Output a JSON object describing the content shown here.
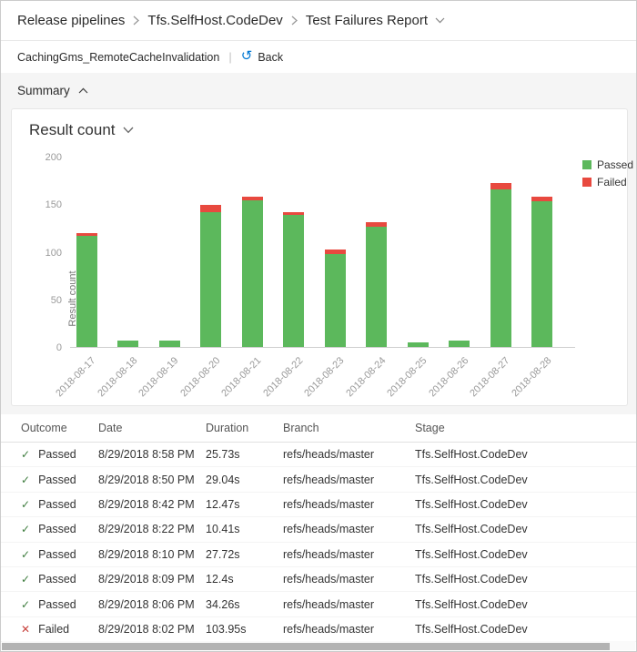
{
  "breadcrumb": {
    "items": [
      "Release pipelines",
      "Tfs.SelfHost.CodeDev",
      "Test Failures Report"
    ]
  },
  "toolbar": {
    "pipeline_name": "CachingGms_RemoteCacheInvalidation",
    "separator": "|",
    "back_label": "Back"
  },
  "summary": {
    "label": "Summary"
  },
  "icons": {
    "back": "undo-arrow",
    "back_glyph": "↺",
    "breadcrumb_separator": "chevron-right",
    "report_dropdown": "chevron-down",
    "summary_collapse": "chevron-up",
    "chart_dropdown": "chevron-down",
    "passed_glyph": "✓",
    "failed_glyph": "✕"
  },
  "chart_data": {
    "type": "bar",
    "stacked": true,
    "title": "Result count",
    "ylabel": "Result count",
    "xlabel": "",
    "ylim": [
      0,
      200
    ],
    "yticks": [
      0,
      50,
      100,
      150,
      200
    ],
    "grid": false,
    "legend_position": "top-right",
    "categories": [
      "2018-08-17",
      "2018-08-18",
      "2018-08-19",
      "2018-08-20",
      "2018-08-21",
      "2018-08-22",
      "2018-08-23",
      "2018-08-24",
      "2018-08-25",
      "2018-08-26",
      "2018-08-27",
      "2018-08-28"
    ],
    "series": [
      {
        "name": "Passed",
        "color": "#5cb85c",
        "values": [
          117,
          7,
          7,
          142,
          154,
          139,
          98,
          126,
          5,
          7,
          166,
          153
        ]
      },
      {
        "name": "Failed",
        "color": "#e8493f",
        "values": [
          3,
          0,
          0,
          7,
          4,
          3,
          4,
          5,
          0,
          0,
          6,
          5
        ]
      }
    ]
  },
  "table": {
    "columns": [
      "Outcome",
      "Date",
      "Duration",
      "Branch",
      "Stage"
    ],
    "rows": [
      {
        "outcome": "Passed",
        "icon": "check",
        "date": "8/29/2018 8:58 PM",
        "duration": "25.73s",
        "branch": "refs/heads/master",
        "stage": "Tfs.SelfHost.CodeDev"
      },
      {
        "outcome": "Passed",
        "icon": "check",
        "date": "8/29/2018 8:50 PM",
        "duration": "29.04s",
        "branch": "refs/heads/master",
        "stage": "Tfs.SelfHost.CodeDev"
      },
      {
        "outcome": "Passed",
        "icon": "check",
        "date": "8/29/2018 8:42 PM",
        "duration": "12.47s",
        "branch": "refs/heads/master",
        "stage": "Tfs.SelfHost.CodeDev"
      },
      {
        "outcome": "Passed",
        "icon": "check",
        "date": "8/29/2018 8:22 PM",
        "duration": "10.41s",
        "branch": "refs/heads/master",
        "stage": "Tfs.SelfHost.CodeDev"
      },
      {
        "outcome": "Passed",
        "icon": "check",
        "date": "8/29/2018 8:10 PM",
        "duration": "27.72s",
        "branch": "refs/heads/master",
        "stage": "Tfs.SelfHost.CodeDev"
      },
      {
        "outcome": "Passed",
        "icon": "check",
        "date": "8/29/2018 8:09 PM",
        "duration": "12.4s",
        "branch": "refs/heads/master",
        "stage": "Tfs.SelfHost.CodeDev"
      },
      {
        "outcome": "Passed",
        "icon": "check",
        "date": "8/29/2018 8:06 PM",
        "duration": "34.26s",
        "branch": "refs/heads/master",
        "stage": "Tfs.SelfHost.CodeDev"
      },
      {
        "outcome": "Failed",
        "icon": "x",
        "date": "8/29/2018 8:02 PM",
        "duration": "103.95s",
        "branch": "refs/heads/master",
        "stage": "Tfs.SelfHost.CodeDev"
      }
    ]
  },
  "colors": {
    "accent": "#0078d4",
    "passed": "#5cb85c",
    "failed": "#e8493f",
    "check_icon": "#3f7d3f",
    "x_icon": "#c8433e"
  }
}
